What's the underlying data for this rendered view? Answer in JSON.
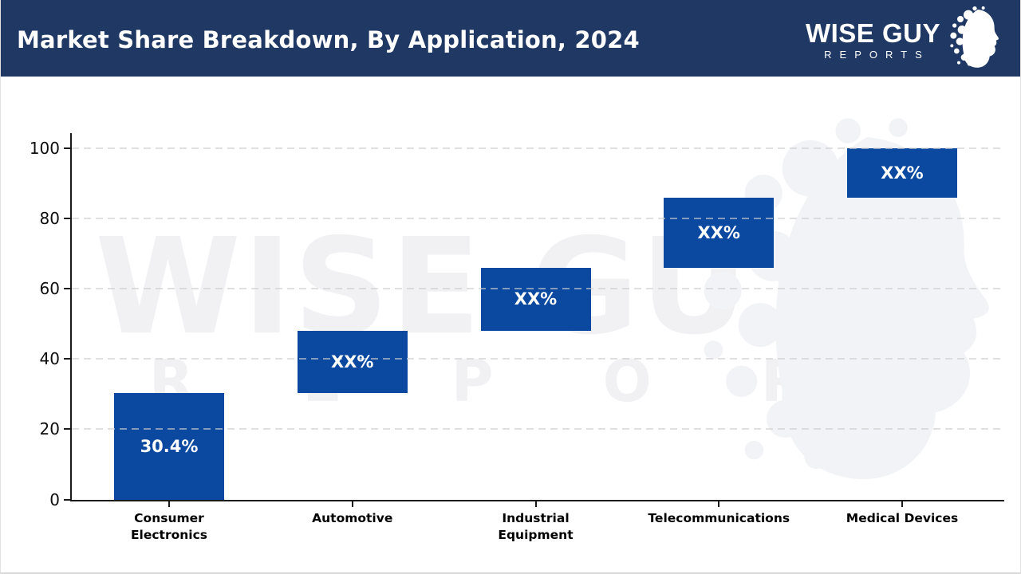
{
  "header": {
    "title": "Market Share Breakdown, By Application, 2024",
    "brand_line1": "WISE GUY",
    "brand_line2": "REPORTS"
  },
  "watermark": {
    "line1": "WISE GUY",
    "line2": "R E P O R T S"
  },
  "colors": {
    "header_bg": "#1f3864",
    "bar": "#0b49a1",
    "bar_label_text": "#ffffff",
    "grid": "#d9d9d9",
    "axis": "#1a1a1a",
    "watermark": "#f1f1f4"
  },
  "chart_data": {
    "type": "bar",
    "subtype": "waterfall",
    "title": "Market Share Breakdown, By Application, 2024",
    "categories": [
      "Consumer Electronics",
      "Automotive",
      "Industrial Equipment",
      "Telecommunications",
      "Medical Devices"
    ],
    "segments": [
      {
        "category": "Consumer Electronics",
        "display_lines": [
          "Consumer",
          "Electronics"
        ],
        "start": 0,
        "end": 30.4,
        "label": "30.4%"
      },
      {
        "category": "Automotive",
        "display_lines": [
          "Automotive"
        ],
        "start": 30.4,
        "end": 48,
        "label": "XX%"
      },
      {
        "category": "Industrial Equipment",
        "display_lines": [
          "Industrial",
          "Equipment"
        ],
        "start": 48,
        "end": 66,
        "label": "XX%"
      },
      {
        "category": "Telecommunications",
        "display_lines": [
          "Telecommunications"
        ],
        "start": 66,
        "end": 86,
        "label": "XX%"
      },
      {
        "category": "Medical Devices",
        "display_lines": [
          "Medical Devices"
        ],
        "start": 86,
        "end": 100,
        "label": "XX%"
      }
    ],
    "yticks": [
      0,
      20,
      40,
      60,
      80,
      100
    ],
    "ylim": [
      0,
      105
    ],
    "xlabel": "",
    "ylabel": "",
    "grid": "horizontal dashed",
    "legend": "none",
    "value_label_position": "center of each bar"
  }
}
